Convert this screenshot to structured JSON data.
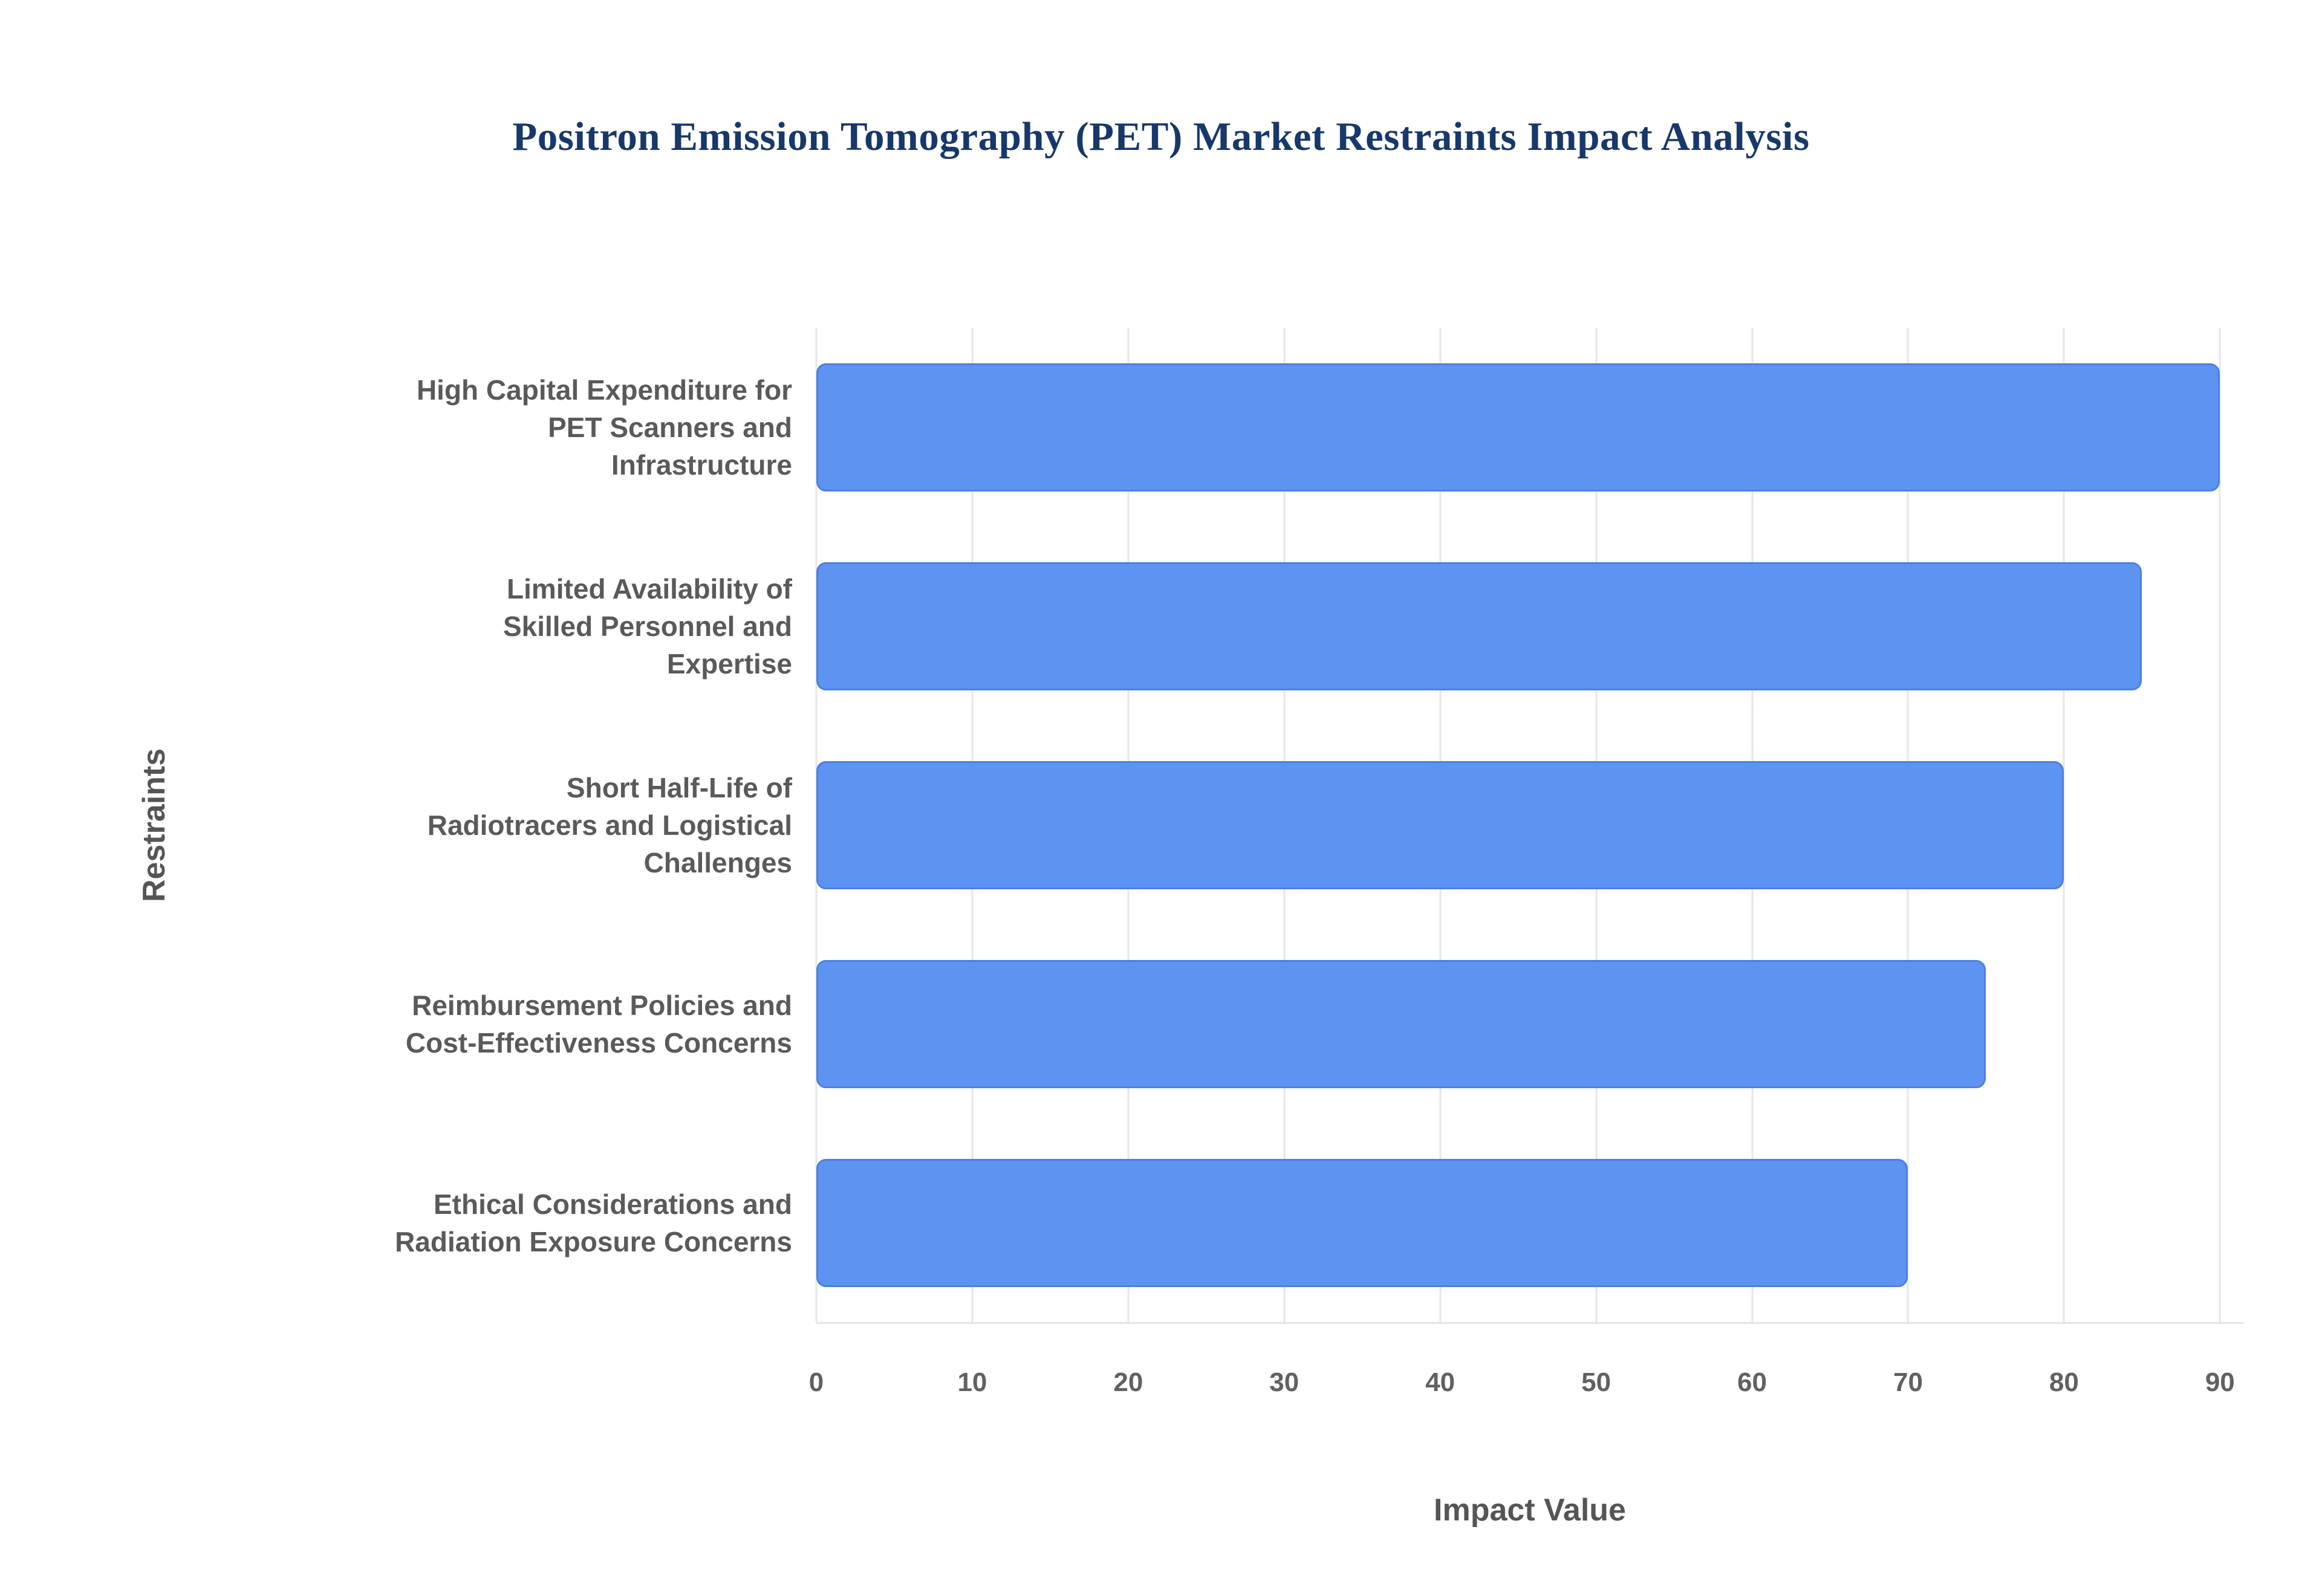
{
  "title": "Positron Emission Tomography (PET) Market Restraints Impact Analysis",
  "chart_data": {
    "type": "bar",
    "orientation": "horizontal",
    "title": "Positron Emission Tomography (PET) Market Restraints Impact Analysis",
    "categories": [
      "High Capital Expenditure for PET Scanners and Infrastructure",
      "Limited Availability of Skilled Personnel and Expertise",
      "Short Half-Life of Radiotracers and Logistical Challenges",
      "Reimbursement Policies and Cost-Effectiveness Concerns",
      "Ethical Considerations and Radiation Exposure Concerns"
    ],
    "categories_wrapped": [
      "High Capital Expenditure for\nPET Scanners and\nInfrastructure",
      "Limited Availability of\nSkilled Personnel and\nExpertise",
      "Short Half-Life of\nRadiotracers and Logistical\nChallenges",
      "Reimbursement Policies and\nCost-Effectiveness Concerns",
      "Ethical Considerations and\nRadiation Exposure Concerns"
    ],
    "values": [
      90,
      85,
      80,
      75,
      70
    ],
    "xlabel": "Impact Value",
    "ylabel": "Restraints",
    "xlim": [
      0,
      91.5
    ],
    "xticks": [
      0,
      10,
      20,
      30,
      40,
      50,
      60,
      70,
      80,
      90
    ],
    "grid": true,
    "legend": "none",
    "colors": {
      "bar": "#5e94f1",
      "bar_border": "#4b80e0",
      "title": "#17386b",
      "axis_text": "#616161",
      "category_text": "#5a5a5a",
      "grid": "#e6e6e6"
    }
  }
}
